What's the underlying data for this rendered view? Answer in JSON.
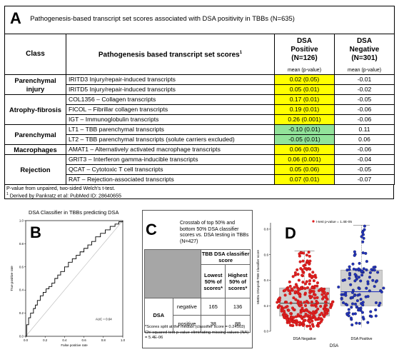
{
  "panelA": {
    "letter": "A",
    "title": "Pathogenesis-based transcript set scores associated with DSA positivity in TBBs (N=635)",
    "headers": {
      "class": "Class",
      "scores": "Pathogenesis based transcript set scores",
      "scores_sup": "1",
      "dsa_pos": [
        "DSA",
        "Positive",
        "(N=126)"
      ],
      "dsa_neg": [
        "DSA",
        "Negative",
        "(N=301)"
      ],
      "mean_pos": "mean (p-value)",
      "mean_neg": "mean (p-value)"
    },
    "groups": [
      {
        "cls": "Parenchymal injury",
        "rows": [
          {
            "name": "IRITD3 Injury/repair-induced transcripts",
            "pos": "0.02 (0.05)",
            "neg": "-0.01",
            "hl": "y"
          },
          {
            "name": "IRITD5 Injury/repair-induced transcripts",
            "pos": "0.05 (0.01)",
            "neg": "-0.02",
            "hl": "y"
          }
        ]
      },
      {
        "cls": "Atrophy-fibrosis",
        "rows": [
          {
            "name": "COL1356 – Collagen transcripts",
            "pos": "0.17 (0.01)",
            "neg": "-0.05",
            "hl": "y"
          },
          {
            "name": "FICOL – Fibrillar collagen transcripts",
            "pos": "0.19 (0.01)",
            "neg": "-0.06",
            "hl": "y"
          },
          {
            "name": "IGT – Immunoglobulin transcripts",
            "pos": "0.26 (0.001)",
            "neg": "-0.06",
            "hl": "y"
          }
        ]
      },
      {
        "cls": "Parenchymal",
        "rows": [
          {
            "name": "LT1 – TBB parenchymal transcripts",
            "pos": "-0.10 (0.01)",
            "neg": "0.11",
            "hl": "g"
          },
          {
            "name": "LT2 – TBB parenchymal transcripts (solute carriers excluded)",
            "pos": "-0.05 (0.01)",
            "neg": "0.06",
            "hl": "g"
          }
        ]
      },
      {
        "cls": "Macrophages",
        "rows": [
          {
            "name": "AMAT1 – Alternatively activated macrophage transcripts",
            "pos": "0.06 (0.03)",
            "neg": "-0.06",
            "hl": "y"
          }
        ]
      },
      {
        "cls": "Rejection",
        "rows": [
          {
            "name": "GRIT3 – Interferon gamma-inducible transcripts",
            "pos": "0.06 (0.001)",
            "neg": "-0.04",
            "hl": "y"
          },
          {
            "name": "QCAT – Cytotoxic T cell transcripts",
            "pos": "0.05 (0.06)",
            "neg": "-0.05",
            "hl": "y"
          },
          {
            "name": "RAT – Rejection-associated transcripts",
            "pos": "0.07 (0.01)",
            "neg": "-0.07",
            "hl": "y"
          }
        ]
      }
    ],
    "footnotes": [
      "P-value from unpaired, two-sided Welch's t-test.",
      "Derived by Pankratz et al: PubMed ID: 28640655"
    ],
    "footnote_sup": "1"
  },
  "panelB": {
    "letter": "B",
    "title": "DSA Classifier in TBBs predicting DSA",
    "auc_label": "AUC = 0.64",
    "xlabel": "False positive rate",
    "ylabel": "True positive rate",
    "ticks": [
      "0.0",
      "0.2",
      "0.4",
      "0.6",
      "0.8",
      "1.0"
    ]
  },
  "panelC": {
    "letter": "C",
    "caption": "Crosstab of top 50% and bottom 50% DSA classifier scores vs. DSA testing in TBBs (N=427)",
    "col_header": "TBB DSA classifier score",
    "col_low": "Lowest 50% of scores*",
    "col_high": "Highest 50% of scores*",
    "row_group": "DSA",
    "rows": [
      {
        "label": "negative",
        "low": "165",
        "high": "136"
      },
      {
        "label": "positive",
        "low": "38",
        "high": "88"
      }
    ],
    "note1": "*Scores split at the median (classifier score = 0.24503)",
    "note2": "Chi squared test p-value eliminating missing values (NA) = 5.4E-06"
  },
  "panelD": {
    "letter": "D",
    "legend": "t-test p-value = 1.4E-05",
    "ylabel": "MMDx DSAprob TBB Classifier score",
    "xlabel": "DSA",
    "groups": [
      "DSA Negative",
      "DSA Positive"
    ],
    "yticks": [
      "0.0",
      "0.2",
      "0.4",
      "0.6",
      "0.8"
    ],
    "colors": {
      "neg": "#e02020",
      "pos": "#2233bb",
      "box": "#d0d0d0"
    }
  },
  "chart_data": [
    {
      "type": "line",
      "title": "DSA Classifier in TBBs predicting DSA",
      "xlabel": "False positive rate",
      "ylabel": "True positive rate",
      "xlim": [
        0,
        1
      ],
      "ylim": [
        0,
        1
      ],
      "auc": 0.64,
      "series": [
        {
          "x": [
            0,
            0.01,
            0.03,
            0.05,
            0.08,
            0.1,
            0.12,
            0.15,
            0.18,
            0.21,
            0.24,
            0.27,
            0.3,
            0.33,
            0.36,
            0.4,
            0.44,
            0.48,
            0.52,
            0.56,
            0.6,
            0.64,
            0.68,
            0.72,
            0.77,
            0.82,
            0.87,
            0.92,
            0.96,
            1.0
          ],
          "y": [
            0,
            0.1,
            0.16,
            0.2,
            0.24,
            0.27,
            0.31,
            0.35,
            0.38,
            0.41,
            0.43,
            0.46,
            0.5,
            0.53,
            0.56,
            0.6,
            0.64,
            0.67,
            0.7,
            0.73,
            0.76,
            0.79,
            0.82,
            0.86,
            0.89,
            0.92,
            0.95,
            0.97,
            0.99,
            1.0
          ]
        }
      ]
    },
    {
      "type": "scatter",
      "ylabel": "MMDx DSAprob TBB Classifier score",
      "xlabel": "DSA",
      "categories": [
        "DSA Negative",
        "DSA Positive"
      ],
      "ylim": [
        0,
        0.85
      ],
      "series": [
        {
          "category": "DSA Negative",
          "median": 0.22,
          "q1": 0.12,
          "q3": 0.34,
          "min": 0.01,
          "max": 0.63
        },
        {
          "category": "DSA Positive",
          "median": 0.31,
          "q1": 0.2,
          "q3": 0.48,
          "min": 0.03,
          "max": 0.83
        }
      ]
    }
  ]
}
